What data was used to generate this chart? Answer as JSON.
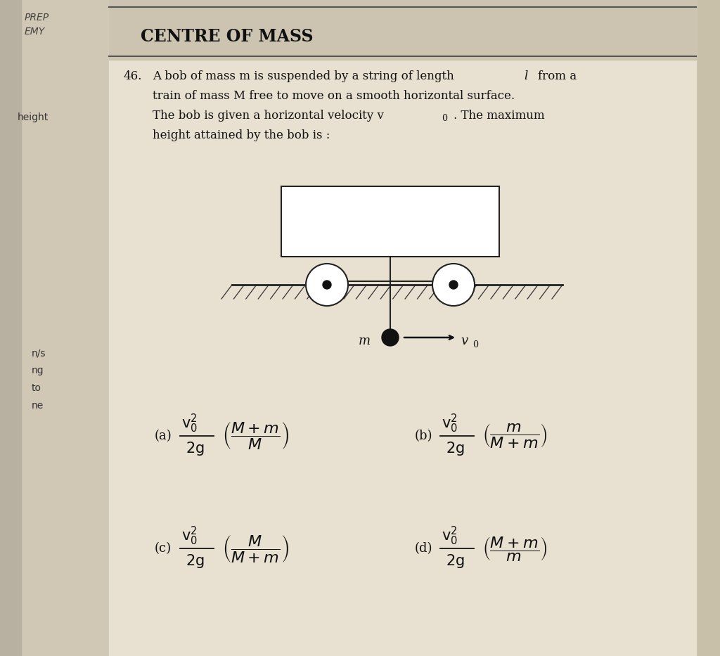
{
  "bg_main": "#e8e0d0",
  "bg_left": "#d0c8b5",
  "bg_right_edge": "#c8c0a8",
  "bg_title_area": "#ddd5c0",
  "title": "CENTRE OF MASS",
  "q_num": "46.",
  "line1": "A bob of mass m is suspended by a string of length",
  "line1b": "l",
  "line1c": "from a",
  "line2": "train of mass M free to move on a smooth horizontal surface.",
  "line3a": "The bob is given a horizontal velocity v",
  "line3b": "0",
  "line3c": ". The maximum",
  "line4": "height attained by the bob is :",
  "left_top1": "PREP",
  "left_top2": "EMY",
  "left_mid": "height",
  "left_bot1": "n/s",
  "left_bot2": "ng",
  "left_bot3": "to",
  "left_bot4": "ne",
  "opt_a_num": "(a)",
  "opt_b_num": "(b)",
  "opt_c_num": "(c)",
  "opt_d_num": "(d)",
  "opt_a_frac_top": "M+m",
  "opt_a_frac_bot": "M",
  "opt_b_frac_top": "m",
  "opt_b_frac_bot": "M+m",
  "opt_c_frac_top": "M",
  "opt_c_frac_bot": "M+m",
  "opt_d_frac_top": "M+m",
  "opt_d_frac_bot": "m",
  "fig_width": 10.24,
  "fig_height": 9.33,
  "dpi": 100
}
